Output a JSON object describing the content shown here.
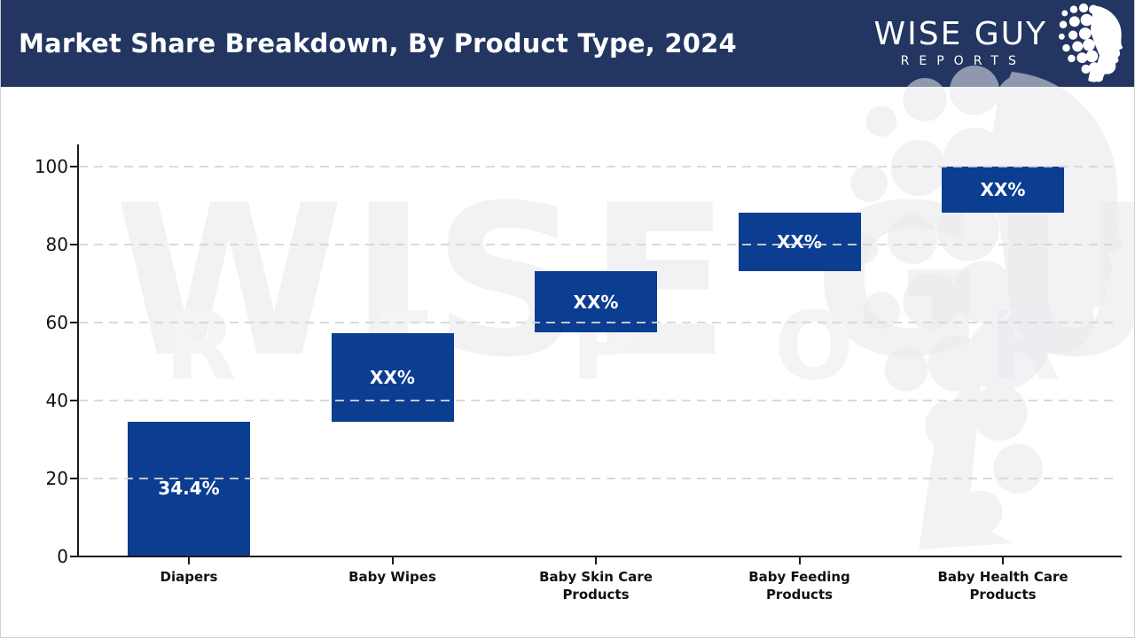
{
  "header": {
    "title": "Market Share Breakdown, By Product Type, 2024",
    "logo": {
      "name_top": "WISE GUY",
      "name_bottom": "REPORTS"
    }
  },
  "watermark": {
    "line1": "WISE GUY",
    "line2": "R E P O R T S"
  },
  "chart_data": {
    "type": "bar",
    "subtype": "waterfall",
    "title": "Market Share Breakdown, By Product Type, 2024",
    "categories": [
      "Diapers",
      "Baby Wipes",
      "Baby Skin Care Products",
      "Baby Feeding Products",
      "Baby Health Care Products"
    ],
    "segments": [
      {
        "category": "Diapers",
        "start": 0,
        "end": 34.4,
        "label": "34.4%"
      },
      {
        "category": "Baby Wipes",
        "start": 34.4,
        "end": 57.0,
        "label": "XX%"
      },
      {
        "category": "Baby Skin Care Products",
        "start": 57.2,
        "end": 73.0,
        "label": "XX%"
      },
      {
        "category": "Baby Feeding Products",
        "start": 73.0,
        "end": 88.0,
        "label": "XX%"
      },
      {
        "category": "Baby Health Care Products",
        "start": 88.0,
        "end": 99.8,
        "label": "XX%"
      }
    ],
    "ylim": [
      0,
      100
    ],
    "yticks": [
      0,
      20,
      40,
      60,
      80,
      100
    ],
    "xlabel": "",
    "ylabel": "",
    "grid": true,
    "legend_position": "none",
    "bar_color": "#0b3d91",
    "bar_label_color": "#ffffff",
    "axis_color": "#1a1a1a",
    "gridline_color": "#d6d6d6",
    "header_color": "#223661"
  }
}
